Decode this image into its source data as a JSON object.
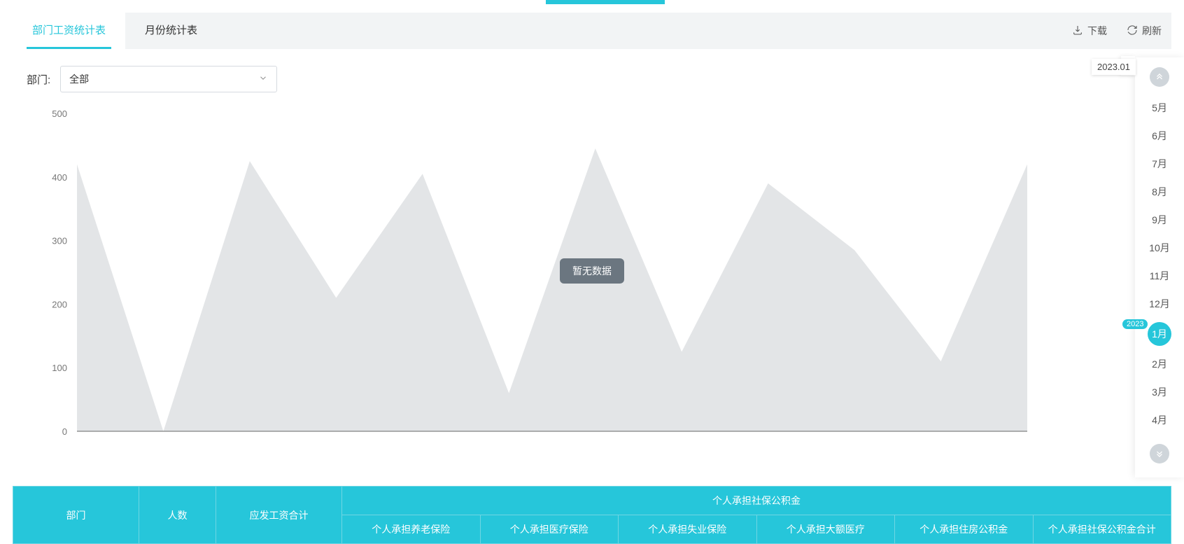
{
  "accent_color": "#26c6da",
  "tabs": [
    {
      "label": "部门工资统计表",
      "active": true
    },
    {
      "label": "月份统计表",
      "active": false
    }
  ],
  "actions": {
    "download": "下载",
    "refresh": "刷新"
  },
  "filter": {
    "label": "部门:",
    "selected": "全部"
  },
  "chart": {
    "type": "area",
    "no_data_label": "暂无数据",
    "background_color": "#ffffff",
    "area_fill": "#e3e5e7",
    "axis_color": "#666666",
    "tick_fontsize": 13,
    "tick_color": "#777777",
    "ylim": [
      0,
      500
    ],
    "ytick_step": 100,
    "yticks": [
      0,
      100,
      200,
      300,
      400,
      500
    ],
    "x_count": 12,
    "values": [
      420,
      0,
      425,
      210,
      405,
      60,
      445,
      125,
      390,
      285,
      110,
      420
    ]
  },
  "table": {
    "group_header": "个人承担社保公积金",
    "columns_left": [
      "部门",
      "人数",
      "应发工资合计"
    ],
    "columns_sub": [
      "个人承担养老保险",
      "个人承担医疗保险",
      "个人承担失业保险",
      "个人承担大额医疗",
      "个人承担住房公积金",
      "个人承担社保公积金合计"
    ]
  },
  "side": {
    "current_label": "2023.01",
    "year_badge": "2023",
    "months": [
      {
        "label": "5月",
        "selected": false,
        "year_start": false
      },
      {
        "label": "6月",
        "selected": false,
        "year_start": false
      },
      {
        "label": "7月",
        "selected": false,
        "year_start": false
      },
      {
        "label": "8月",
        "selected": false,
        "year_start": false
      },
      {
        "label": "9月",
        "selected": false,
        "year_start": false
      },
      {
        "label": "10月",
        "selected": false,
        "year_start": false
      },
      {
        "label": "11月",
        "selected": false,
        "year_start": false
      },
      {
        "label": "12月",
        "selected": false,
        "year_start": false
      },
      {
        "label": "1月",
        "selected": true,
        "year_start": true
      },
      {
        "label": "2月",
        "selected": false,
        "year_start": false
      },
      {
        "label": "3月",
        "selected": false,
        "year_start": false
      },
      {
        "label": "4月",
        "selected": false,
        "year_start": false
      }
    ]
  }
}
